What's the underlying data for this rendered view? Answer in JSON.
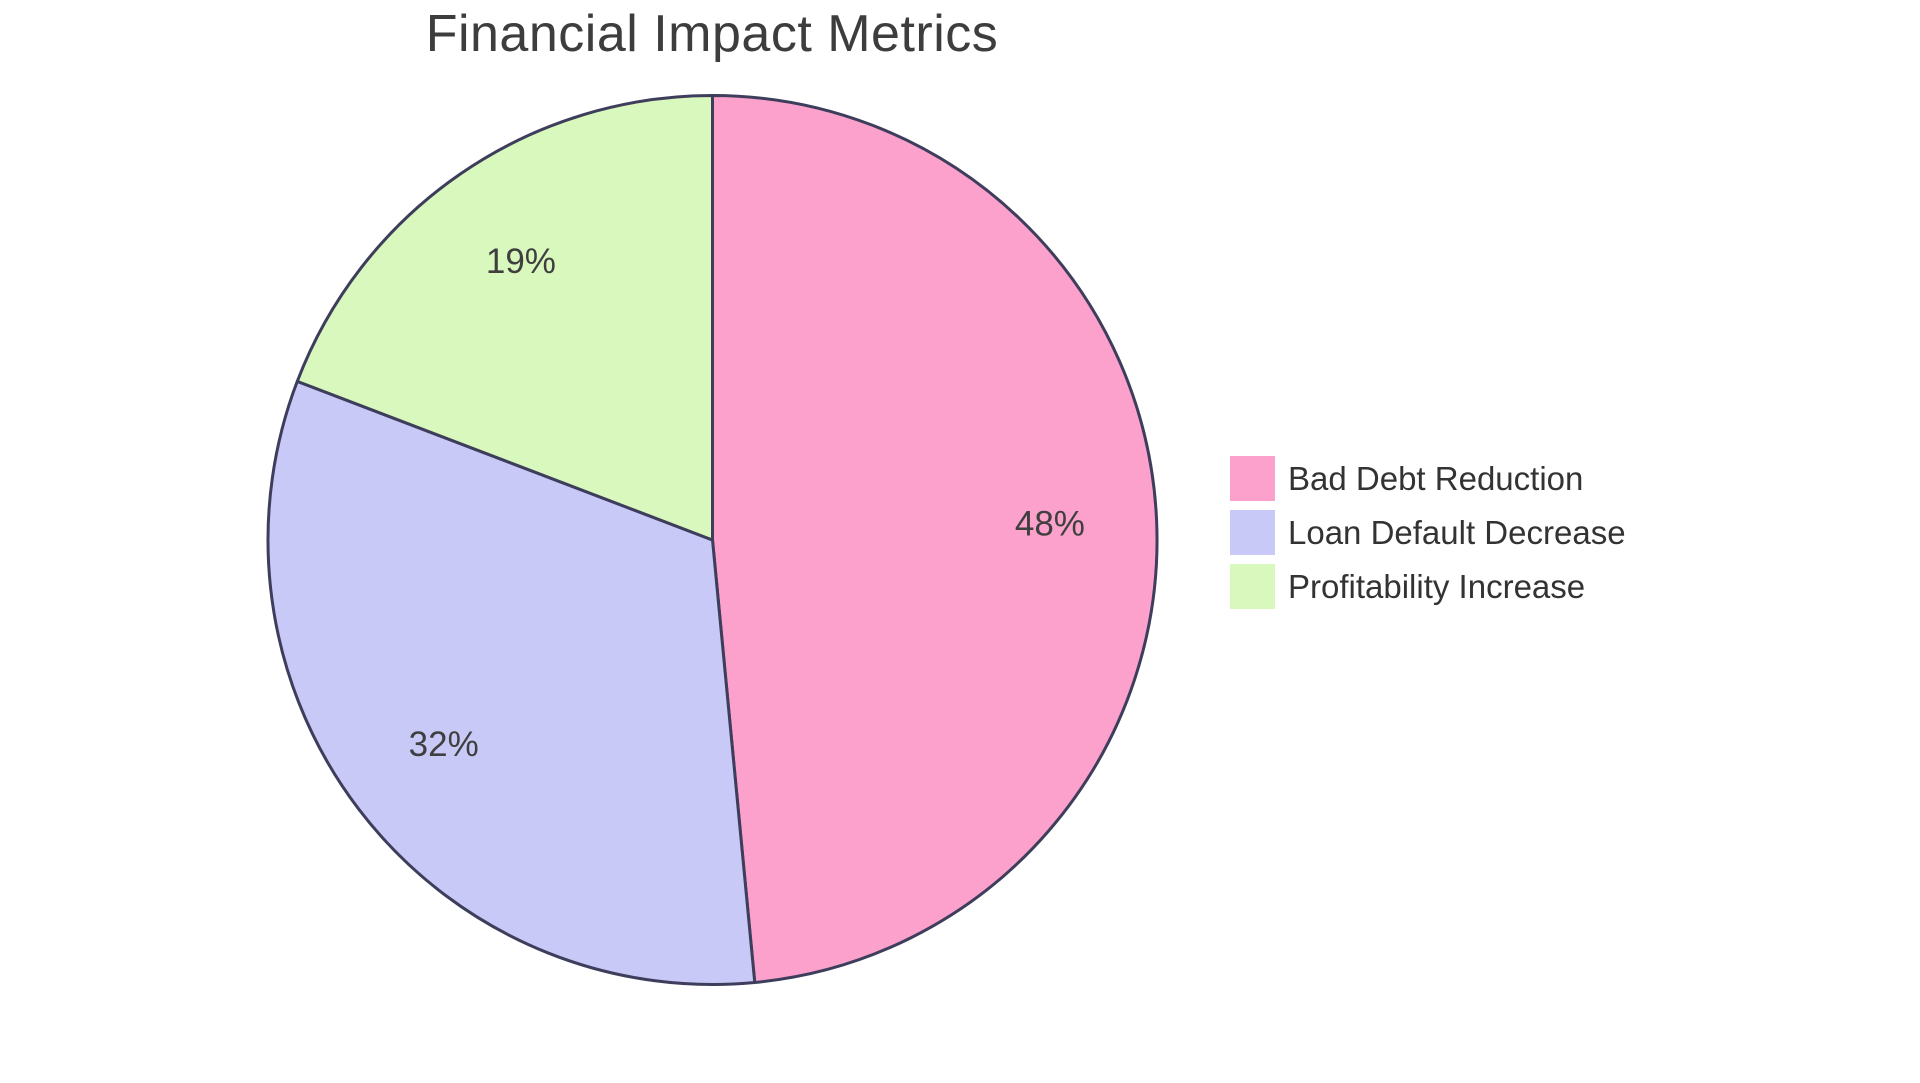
{
  "chart_data": {
    "type": "pie",
    "title": "Financial Impact Metrics",
    "categories": [
      "Bad Debt Reduction",
      "Loan Default Decrease",
      "Profitability Increase"
    ],
    "values": [
      48,
      32,
      19
    ],
    "slice_labels": [
      "48%",
      "32%",
      "19%"
    ],
    "colors": [
      "#FBA1CB",
      "#C9C9F7",
      "#D8F8BD"
    ],
    "slices": [
      {
        "label": "Bad Debt Reduction",
        "value": 48,
        "percent_label": "48%",
        "color": "#FBA1CB"
      },
      {
        "label": "Loan Default Decrease",
        "value": 32,
        "percent_label": "32%",
        "color": "#C9C9F7"
      },
      {
        "label": "Profitability Increase",
        "value": 19,
        "percent_label": "19%",
        "color": "#D8F8BD"
      }
    ],
    "start_angle": "top",
    "direction": "clockwise",
    "wedge_border_color": "#3E3E5C",
    "percent_label_color": "#3F3F3F",
    "title_color": "#3D3D3D",
    "legend_text_color": "#333333",
    "legend_position": "right-middle",
    "background": "#FFFFFF"
  }
}
